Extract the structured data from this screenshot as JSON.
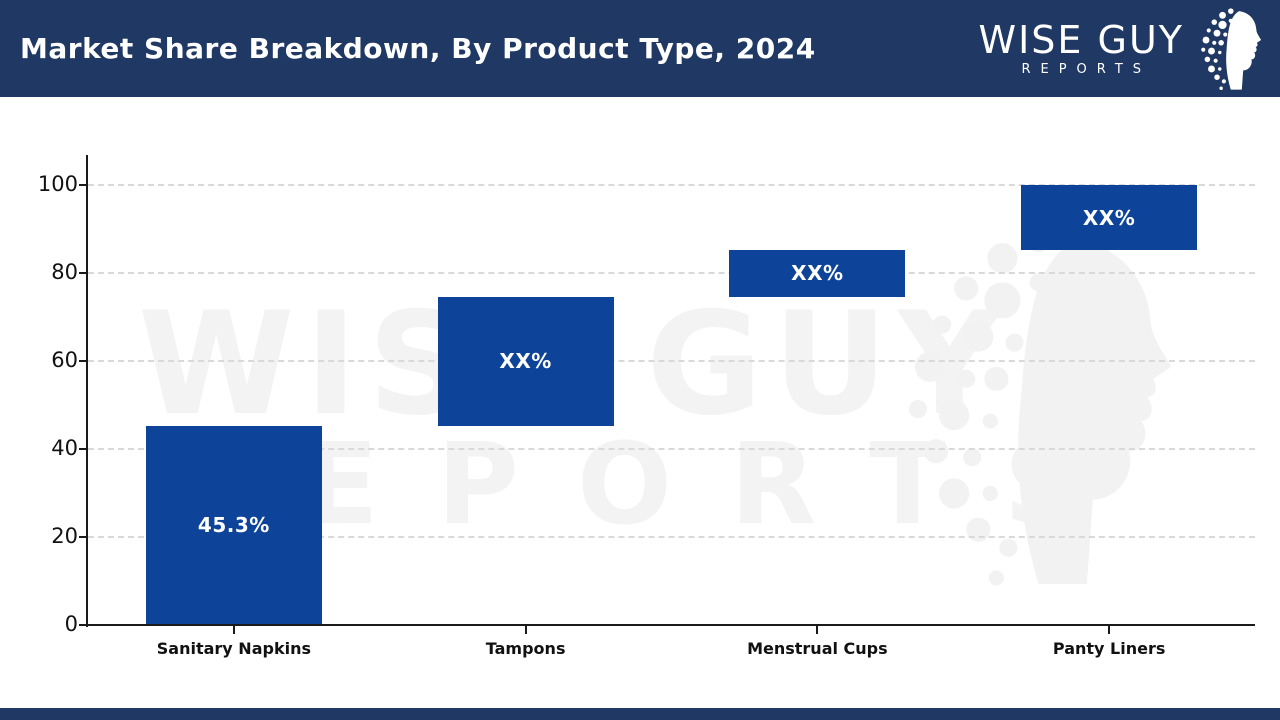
{
  "header": {
    "title": "Market Share Breakdown, By Product Type, 2024",
    "logo": {
      "line1": "WISE GUY",
      "line2": "REPORTS",
      "icon": "dotted-head-icon"
    }
  },
  "watermark": {
    "line1": "WISE GUY",
    "line2": "REPORTS"
  },
  "chart_data": {
    "type": "bar",
    "subtype": "waterfall",
    "title": "Market Share Breakdown, By Product Type, 2024",
    "categories": [
      "Sanitary Napkins",
      "Tampons",
      "Menstrual Cups",
      "Panty Liners"
    ],
    "segments": [
      {
        "category": "Sanitary Napkins",
        "start": 0,
        "end": 45.3,
        "label": "45.3%"
      },
      {
        "category": "Tampons",
        "start": 45.3,
        "end": 74.6,
        "label": "XX%"
      },
      {
        "category": "Menstrual Cups",
        "start": 74.6,
        "end": 85.2,
        "label": "XX%"
      },
      {
        "category": "Panty Liners",
        "start": 85.2,
        "end": 100,
        "label": "XX%"
      }
    ],
    "ylim": [
      0,
      100
    ],
    "yticks": [
      0,
      20,
      40,
      60,
      80,
      100
    ],
    "xlabel": "",
    "ylabel": "",
    "grid": "horizontal-dashed",
    "legend": "none",
    "bar_color": "#0d4499",
    "bar_label_color": "#ffffff"
  },
  "colors": {
    "header_bg": "#1f3864",
    "footer_bg": "#1f3864",
    "bar": "#0d4499",
    "grid": "#d9d9d9",
    "axis": "#1a1a1a",
    "watermark": "#f3f3f3"
  }
}
